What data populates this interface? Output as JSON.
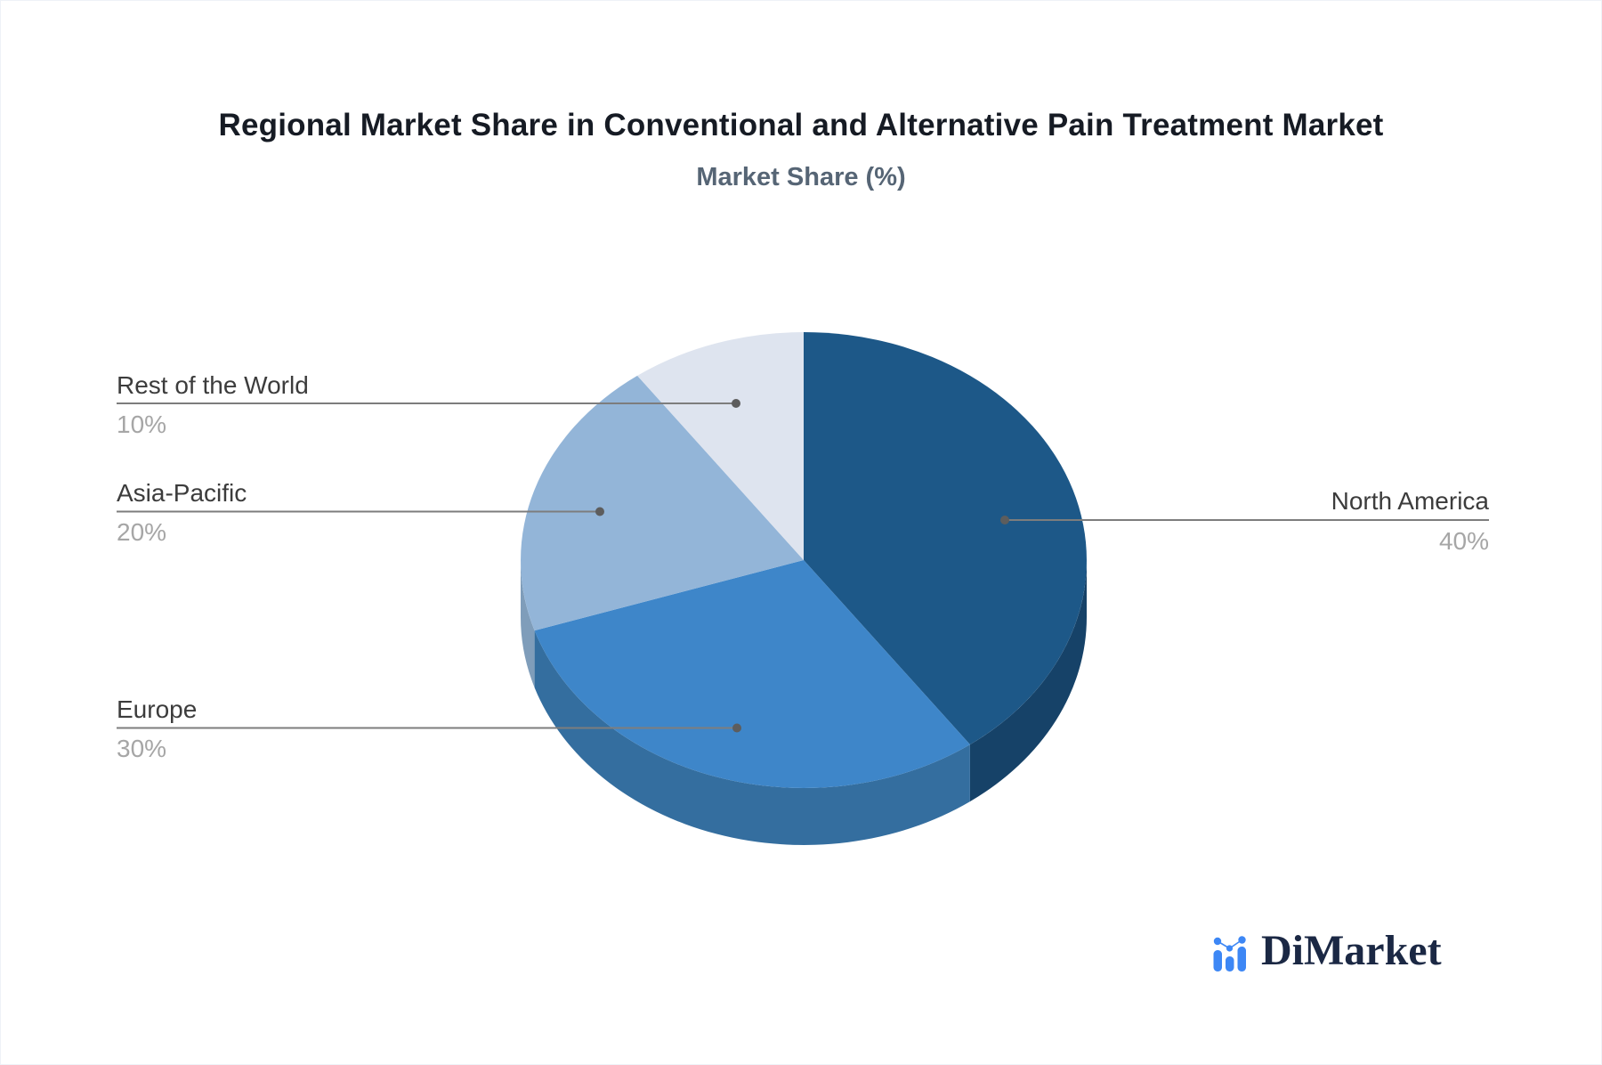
{
  "header": {
    "title": "Regional Market Share in Conventional and Alternative Pain Treatment Market",
    "subtitle": "Market Share (%)"
  },
  "chart_data": {
    "type": "pie",
    "style": "3d-extruded",
    "title": "Regional Market Share in Conventional and Alternative Pain Treatment Market",
    "subtitle": "Market Share (%)",
    "unit": "%",
    "start_angle": "12-oclock",
    "direction": "clockwise",
    "legend_position": "callout-labels",
    "slices": [
      {
        "label": "North America",
        "value": 40,
        "value_text": "40%",
        "color": "#1d5888",
        "side_color": "#164268"
      },
      {
        "label": "Europe",
        "value": 30,
        "value_text": "30%",
        "color": "#3e86c9",
        "side_color": "#346e9f"
      },
      {
        "label": "Asia-Pacific",
        "value": 20,
        "value_text": "20%",
        "color": "#93b5d8",
        "side_color": "#7f9dba"
      },
      {
        "label": "Rest of the World",
        "value": 10,
        "value_text": "10%",
        "color": "#dee4ef",
        "side_color": "#c2cbd9"
      }
    ]
  },
  "logo": {
    "text": "DiMarket",
    "icon": "bar-chart-icon",
    "text_color": "#1b2844",
    "icon_color": "#3d87f5"
  },
  "colors": {
    "background": "#ffffff",
    "label_text": "#3c3c3c",
    "value_text": "#a6a6a6",
    "connector_line": "#7d7d7d",
    "connector_dot": "#5d5d5d"
  }
}
